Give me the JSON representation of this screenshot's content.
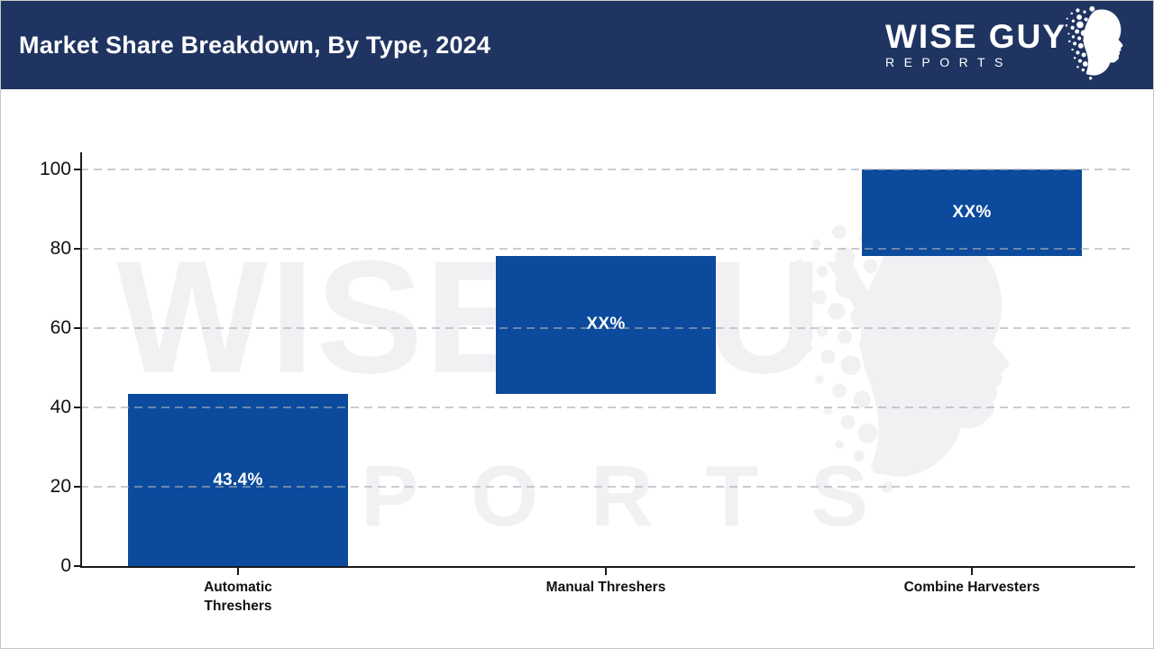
{
  "header": {
    "title": "Market Share Breakdown, By Type, 2024",
    "logo": {
      "line1": "WISE GUY",
      "line2": "REPORTS"
    }
  },
  "watermark": {
    "line1": "WISE GUY",
    "line2": "REPORTS"
  },
  "chart_data": {
    "type": "bar",
    "variant": "stacked-waterfall-segments",
    "title": "Market Share Breakdown, By Type, 2024",
    "categories": [
      "Automatic\nThreshers",
      "Manual Threshers",
      "Combine Harvesters"
    ],
    "series": [
      {
        "name": "Automatic Threshers",
        "start": 0,
        "end": 43.4,
        "value": 43.4,
        "label": "43.4%"
      },
      {
        "name": "Manual Threshers",
        "start": 43.4,
        "end": 78.2,
        "value": 34.8,
        "label": "XX%"
      },
      {
        "name": "Combine Harvesters",
        "start": 78.2,
        "end": 100,
        "value": 21.8,
        "label": "XX%"
      }
    ],
    "xlabel": "",
    "ylabel": "",
    "ylim": [
      0,
      100
    ],
    "yticks": [
      0,
      20,
      40,
      60,
      80,
      100
    ],
    "grid": "dashed-horizontal",
    "legend": "none",
    "bar_color": "#0b4a9c",
    "bar_label_color": "#ffffff"
  },
  "colors": {
    "header_bg": "#1f3461",
    "bar": "#0b4a9c",
    "watermark": "#f1f1f4",
    "axis": "#1a1a1a",
    "page_border": "#c9c9cc"
  }
}
